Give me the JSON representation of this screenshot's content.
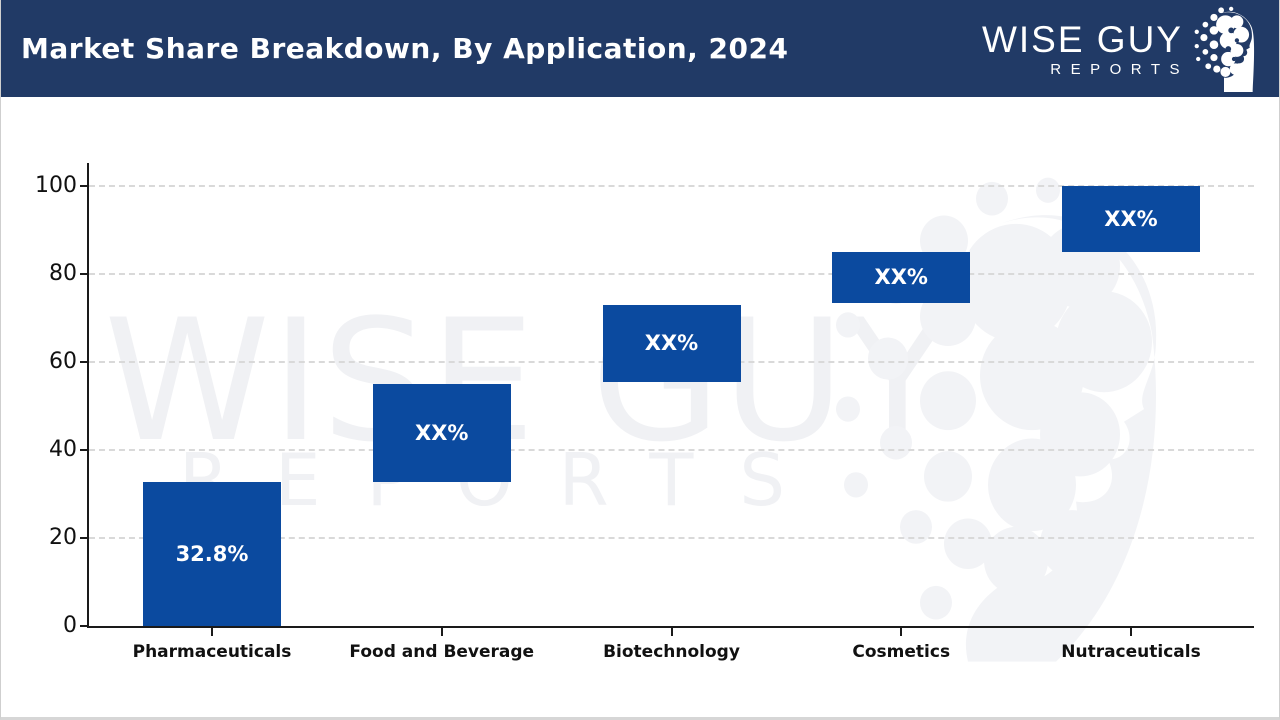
{
  "header": {
    "title": "Market Share Breakdown, By Application, 2024",
    "bg_color": "#213a66",
    "text_color": "#ffffff",
    "logo": {
      "line1": "WISE GUY",
      "line2": "REPORTS"
    }
  },
  "watermark": {
    "line1": "WISE GUY",
    "line2": "REPORTS"
  },
  "chart_data": {
    "type": "bar",
    "subtype": "waterfall",
    "title": "Market Share Breakdown, By Application, 2024",
    "categories": [
      "Pharmaceuticals",
      "Food and Beverage",
      "Biotechnology",
      "Cosmetics",
      "Nutraceuticals"
    ],
    "segments": [
      {
        "category": "Pharmaceuticals",
        "start": 0,
        "end": 32.8,
        "label": "32.8%"
      },
      {
        "category": "Food and Beverage",
        "start": 32.8,
        "end": 55,
        "label": "XX%"
      },
      {
        "category": "Biotechnology",
        "start": 55.5,
        "end": 73,
        "label": "XX%"
      },
      {
        "category": "Cosmetics",
        "start": 73.5,
        "end": 85,
        "label": "XX%"
      },
      {
        "category": "Nutraceuticals",
        "start": 85,
        "end": 100,
        "label": "XX%"
      }
    ],
    "ylim": [
      0,
      100
    ],
    "yticks": [
      0,
      20,
      40,
      60,
      80,
      100
    ],
    "xlabel": "",
    "ylabel": "",
    "grid": "horizontal-dashed",
    "legend": false,
    "bar_color": "#0b4a9f",
    "value_label_color": "#ffffff",
    "gridline_color": "#d9d9d9",
    "axis_color": "#1a1a1a"
  }
}
